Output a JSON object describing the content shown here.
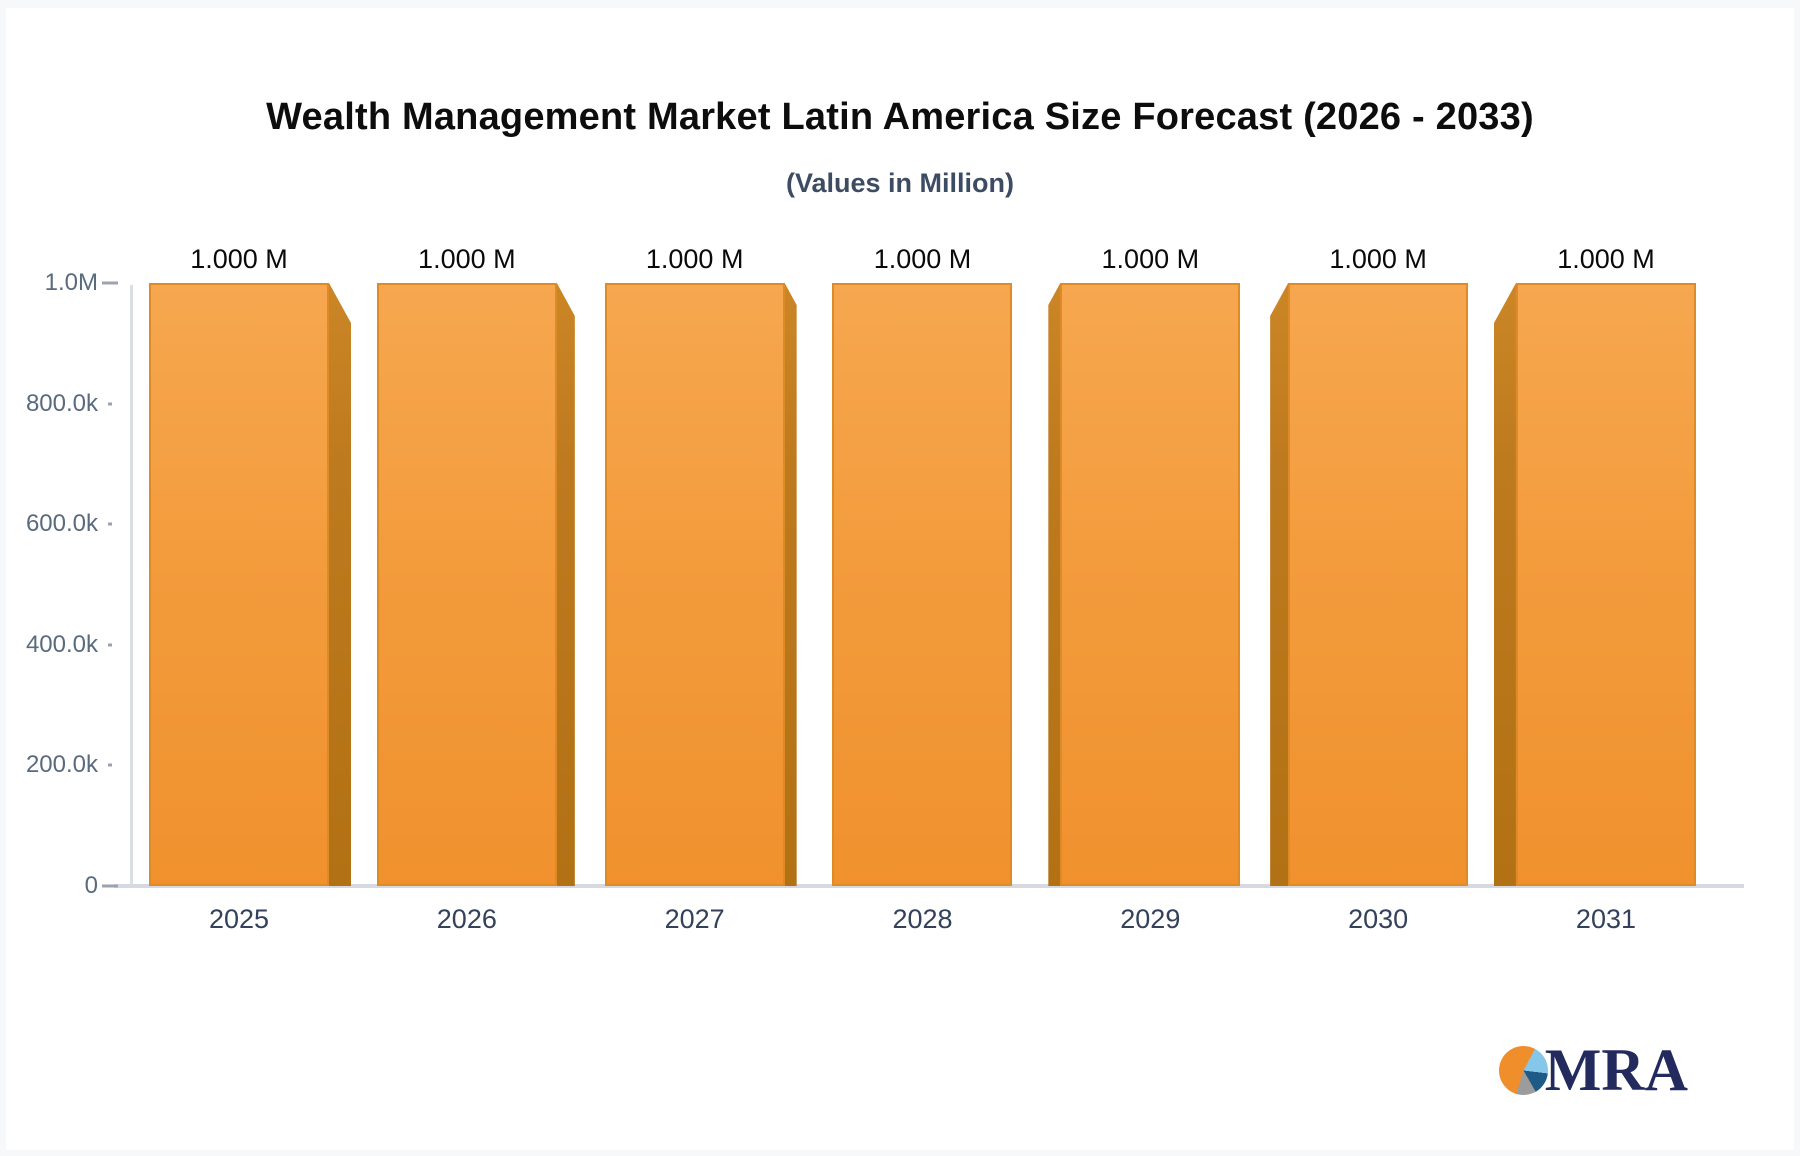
{
  "header": {
    "title": "Wealth Management Market Latin America Size Forecast (2026 - 2033)",
    "subtitle": "(Values in Million)"
  },
  "chart_data": {
    "type": "bar",
    "style": "3d-perspective-bars",
    "title": "Wealth Management Market Latin America Size Forecast (2026 - 2033)",
    "subtitle": "(Values in Million)",
    "categories": [
      "2025",
      "2026",
      "2027",
      "2028",
      "2029",
      "2030",
      "2031"
    ],
    "values": [
      1000000,
      1000000,
      1000000,
      1000000,
      1000000,
      1000000,
      1000000
    ],
    "value_labels": [
      "1.000 M",
      "1.000 M",
      "1.000 M",
      "1.000 M",
      "1.000 M",
      "1.000 M",
      "1.000 M"
    ],
    "xlabel": "",
    "ylabel": "",
    "ylim": [
      0,
      1000000
    ],
    "yticks": [
      {
        "label": "1.0M",
        "value": 1000000
      },
      {
        "label": "800.0k",
        "value": 800000
      },
      {
        "label": "600.0k",
        "value": 600000
      },
      {
        "label": "400.0k",
        "value": 400000
      },
      {
        "label": "200.0k",
        "value": 200000
      },
      {
        "label": "0",
        "value": 0
      }
    ],
    "grid": false,
    "legend": false,
    "colors": {
      "bar_top": "#F6A74F",
      "bar_bottom": "#F0912D",
      "bar_border": "#DE8A26",
      "bar_side": "#BE7A1E",
      "axis_line": "#DBDEE3",
      "tick_label": "#5A6B7E",
      "category_label": "#33415A",
      "value_label": "#0A0A0A"
    }
  },
  "logo": {
    "text": "MRA",
    "text_color": "#232B5E",
    "pie_colors": {
      "orange": "#EF8E2B",
      "light_blue": "#85C7E9",
      "dark_blue": "#1E5A86",
      "gray": "#9C9C9C"
    }
  }
}
